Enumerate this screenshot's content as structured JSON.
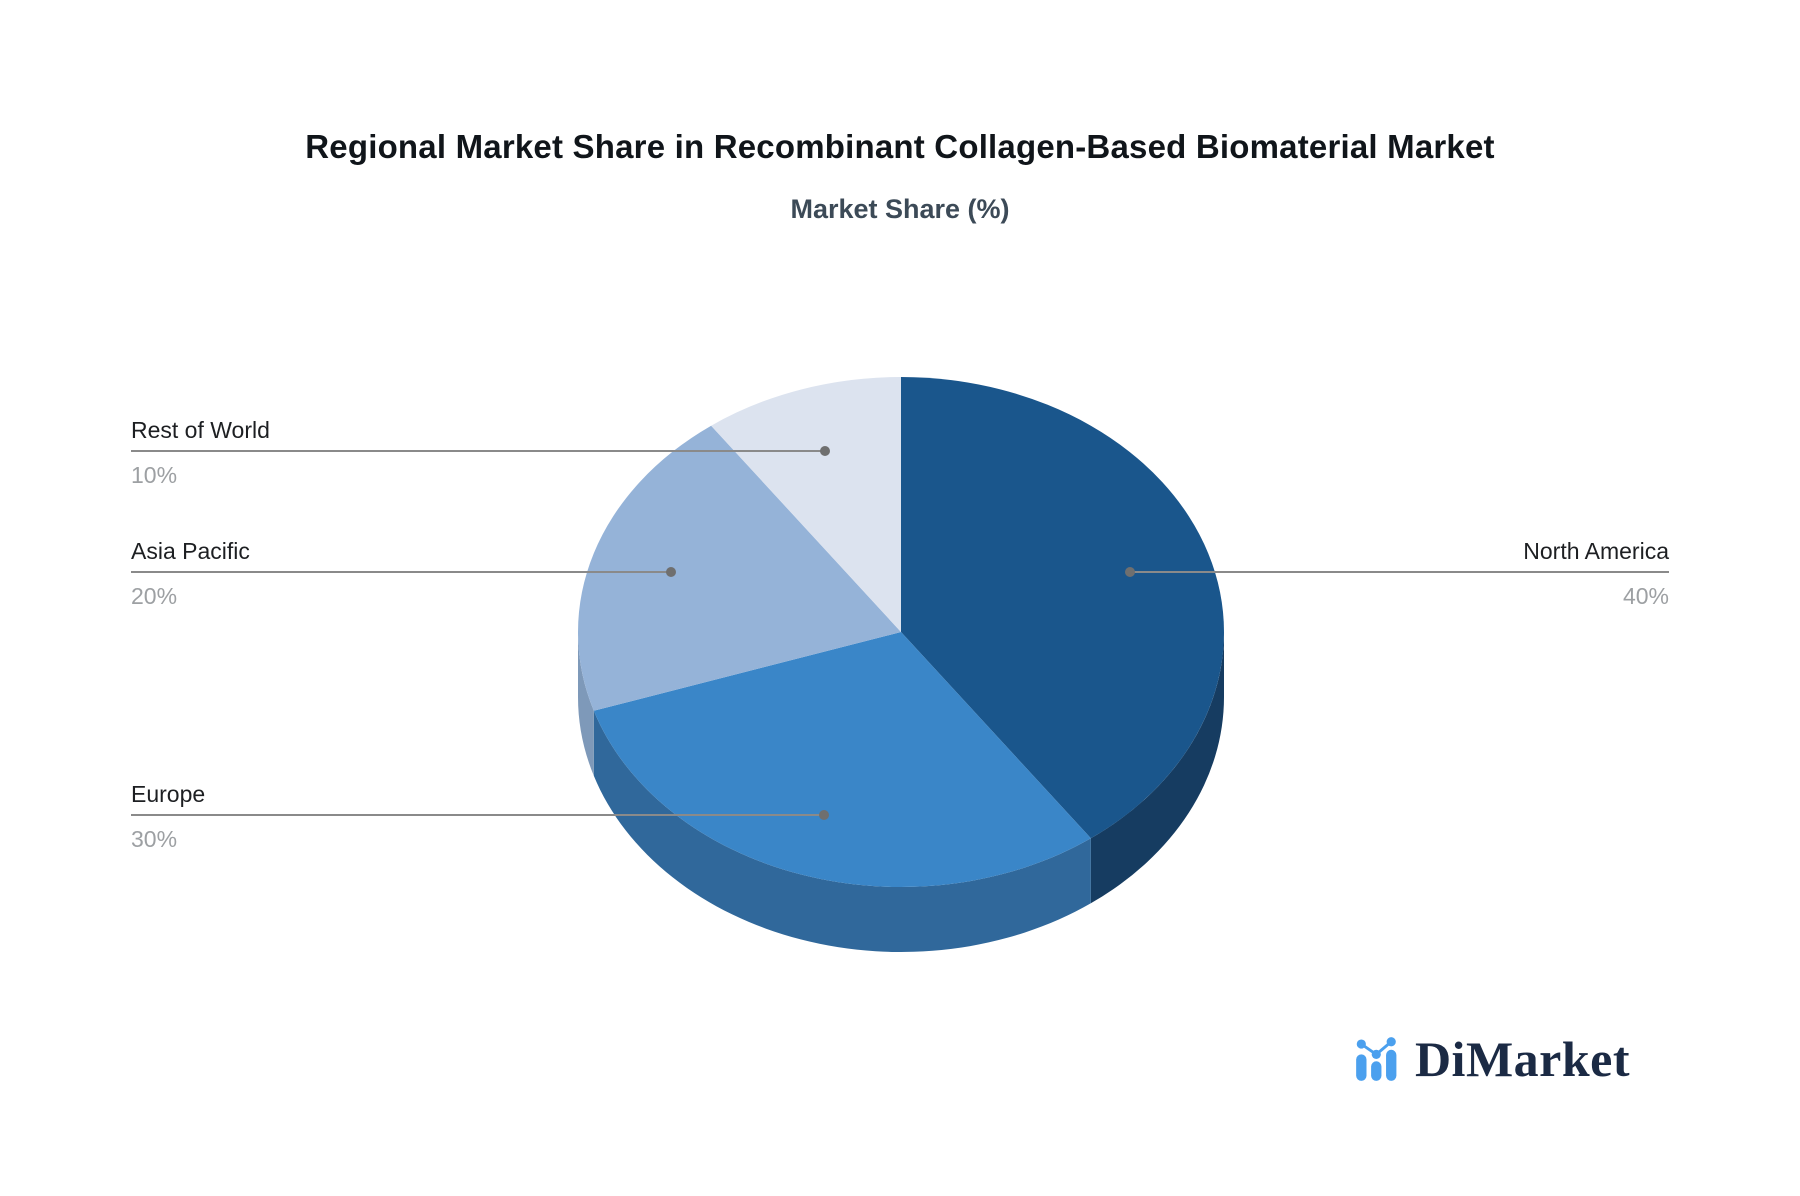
{
  "chart_data": {
    "type": "pie",
    "style": "3d",
    "title": "Regional Market Share in Recombinant Collagen-Based Biomaterial Market",
    "subtitle": "Market Share (%)",
    "unit": "%",
    "start_angle_deg": 0,
    "direction": "clockwise",
    "legend_position": "callout-labels",
    "slices": [
      {
        "label": "North America",
        "value": 40,
        "pct_label": "40%",
        "color": "#1A568C",
        "wall_color": "#163C61",
        "callout_side": "right"
      },
      {
        "label": "Europe",
        "value": 30,
        "pct_label": "30%",
        "color": "#3A86C8",
        "wall_color": "#30689B",
        "callout_side": "left"
      },
      {
        "label": "Asia Pacific",
        "value": 20,
        "pct_label": "20%",
        "color": "#95B3D8",
        "wall_color": "#7E99B9",
        "callout_side": "left"
      },
      {
        "label": "Rest of World",
        "value": 10,
        "pct_label": "10%",
        "color": "#DCE3EF",
        "wall_color": "#C3CEDD",
        "callout_side": "left"
      }
    ]
  },
  "callout_style": {
    "line_color": "#8a8a8a",
    "dot_color": "#6f6f6f",
    "label_color": "#1d1f22",
    "pct_color": "#9da0a3"
  },
  "brand": {
    "name": "DiMarket",
    "icon": "bar-line-chart-icon",
    "icon_color": "#4BA0EE",
    "text_color": "#1b2a44"
  }
}
